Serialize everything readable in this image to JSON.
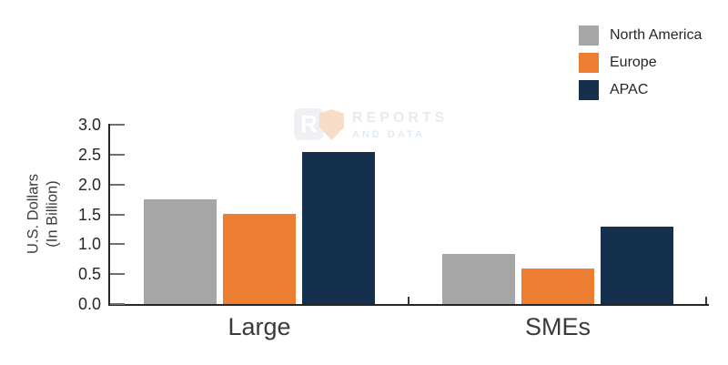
{
  "chart_data": {
    "type": "bar",
    "title": "",
    "categories": [
      "Large",
      "SMEs"
    ],
    "series": [
      {
        "name": "North America",
        "color": "#a6a6a6",
        "values": [
          1.75,
          0.83
        ]
      },
      {
        "name": "Europe",
        "color": "#ed7d31",
        "values": [
          1.5,
          0.6
        ]
      },
      {
        "name": "APAC",
        "color": "#15304c",
        "values": [
          2.55,
          1.3
        ]
      }
    ],
    "ylabel_line1": "U.S. Dollars",
    "ylabel_line2": "(In Billion)",
    "xlabel": "",
    "ylim": [
      0,
      3.0
    ],
    "ytick_labels": [
      "3.0",
      "2.5",
      "2.0",
      "1.5",
      "1.0",
      "0.5",
      "0.0"
    ],
    "grid": false,
    "legend_position": "top-right"
  },
  "watermark": {
    "logo_letter": "R",
    "line1": "REPORTS",
    "line2": "AND DATA"
  }
}
